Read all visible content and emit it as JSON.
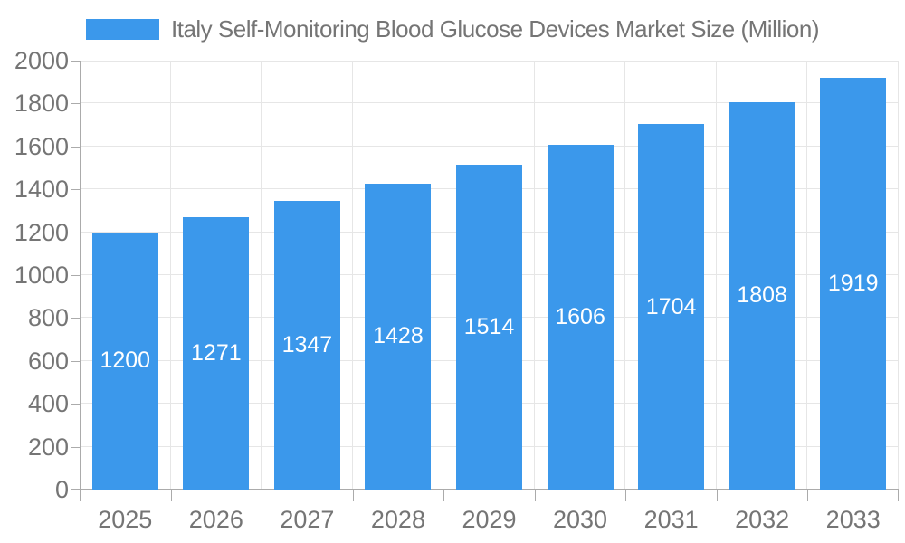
{
  "chart_data": {
    "type": "bar",
    "title": "Italy Self-Monitoring Blood Glucose Devices Market Size (Million)",
    "categories": [
      "2025",
      "2026",
      "2027",
      "2028",
      "2029",
      "2030",
      "2031",
      "2032",
      "2033"
    ],
    "values": [
      1200,
      1271,
      1347,
      1428,
      1514,
      1606,
      1704,
      1808,
      1919
    ],
    "xlabel": "",
    "ylabel": "",
    "ylim": [
      0,
      2000
    ],
    "ytick_step": 200,
    "yticks": [
      "0",
      "200",
      "400",
      "600",
      "800",
      "1000",
      "1200",
      "1400",
      "1600",
      "1800",
      "2000"
    ],
    "grid": true,
    "legend_position": "top-center",
    "value_label_position": "inside-middle"
  },
  "colors": {
    "bar": "#3B98EB",
    "grid": "#E6E6E6",
    "axis": "#ABABAB",
    "tick_text": "#757575",
    "legend_text": "#757575",
    "value_label": "#FFFFFF",
    "background": "#FFFFFF"
  }
}
